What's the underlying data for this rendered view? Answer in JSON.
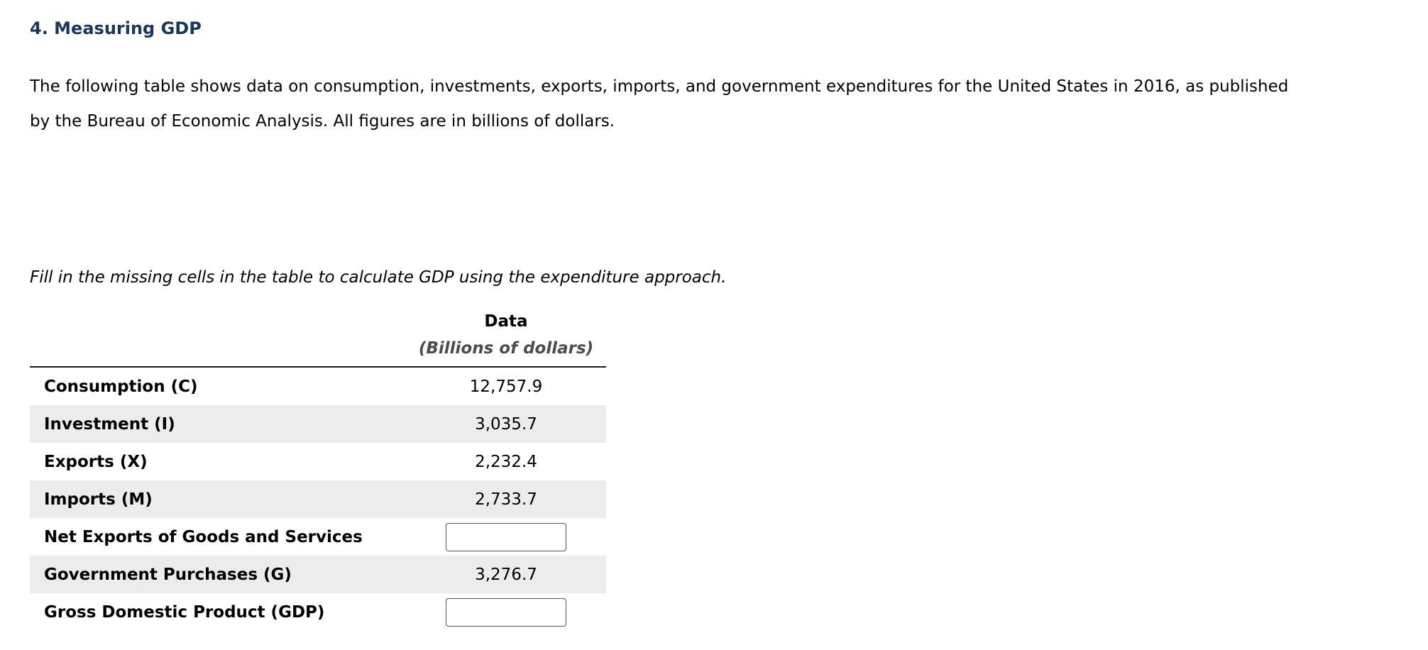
{
  "question": {
    "title": "4. Measuring GDP",
    "intro": "The following table shows data on consumption, investments, exports, imports, and government expenditures for the United States in 2016, as published by the Bureau of Economic Analysis. All figures are in billions of dollars.",
    "instruction": "Fill in the missing cells in the table to calculate GDP using the expenditure approach."
  },
  "table": {
    "header": {
      "line1": "Data",
      "line2": "(Billions of dollars)"
    },
    "rows": [
      {
        "label": "Consumption (C)",
        "value": "12,757.9"
      },
      {
        "label": "Investment (I)",
        "value": "3,035.7"
      },
      {
        "label": "Exports (X)",
        "value": "2,232.4"
      },
      {
        "label": "Imports (M)",
        "value": "2,733.7"
      },
      {
        "label": "Net Exports of Goods and Services",
        "value": ""
      },
      {
        "label": "Government Purchases (G)",
        "value": "3,276.7"
      },
      {
        "label": "Gross Domestic Product (GDP)",
        "value": ""
      }
    ]
  },
  "colors": {
    "title_blue": "#17375e",
    "row_alt": "#ececec",
    "subheader_gray": "#4d4d4d"
  }
}
